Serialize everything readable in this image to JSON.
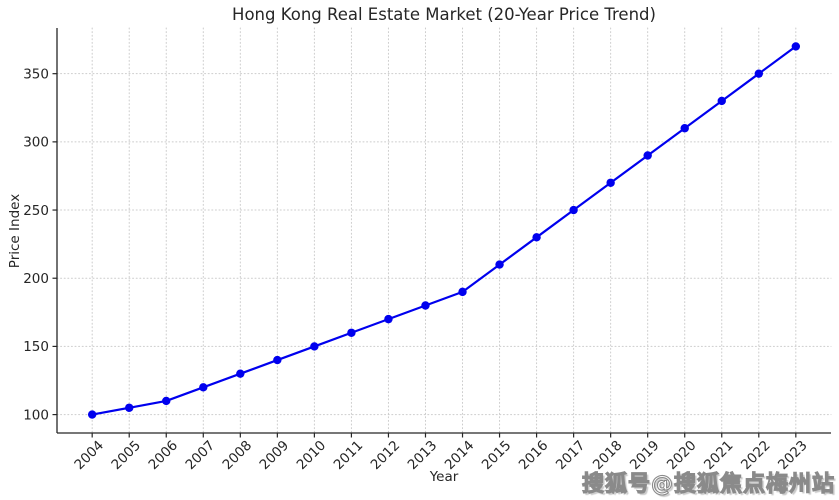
{
  "figure": {
    "title": "Hong Kong Real Estate Market (20-Year Price Trend)",
    "xlabel": "Year",
    "ylabel": "Price Index",
    "watermark": "搜狐号@搜狐焦点梅州站",
    "background_color": "#ffffff",
    "text_color": "#262626"
  },
  "chart_data": {
    "type": "line",
    "title": "Hong Kong Real Estate Market (20-Year Price Trend)",
    "xlabel": "Year",
    "ylabel": "Price Index",
    "x": [
      2004,
      2005,
      2006,
      2007,
      2008,
      2009,
      2010,
      2011,
      2012,
      2013,
      2014,
      2015,
      2016,
      2017,
      2018,
      2019,
      2020,
      2021,
      2022,
      2023
    ],
    "series": [
      {
        "name": "Price Index",
        "values": [
          100,
          105,
          110,
          120,
          130,
          140,
          150,
          160,
          170,
          180,
          190,
          210,
          230,
          250,
          270,
          290,
          310,
          330,
          350,
          370
        ],
        "color": "#0000ee",
        "marker": "circle",
        "line_width": 2.2
      }
    ],
    "yticks": [
      100,
      150,
      200,
      250,
      300,
      350
    ],
    "xlim": [
      2003.05,
      2023.95
    ],
    "ylim": [
      86.5,
      383.5
    ],
    "grid": true,
    "grid_style": "dotted",
    "grid_color": "#cccccc",
    "spine_color": "#262626",
    "x_tick_rotation": 45,
    "legend": "none"
  }
}
